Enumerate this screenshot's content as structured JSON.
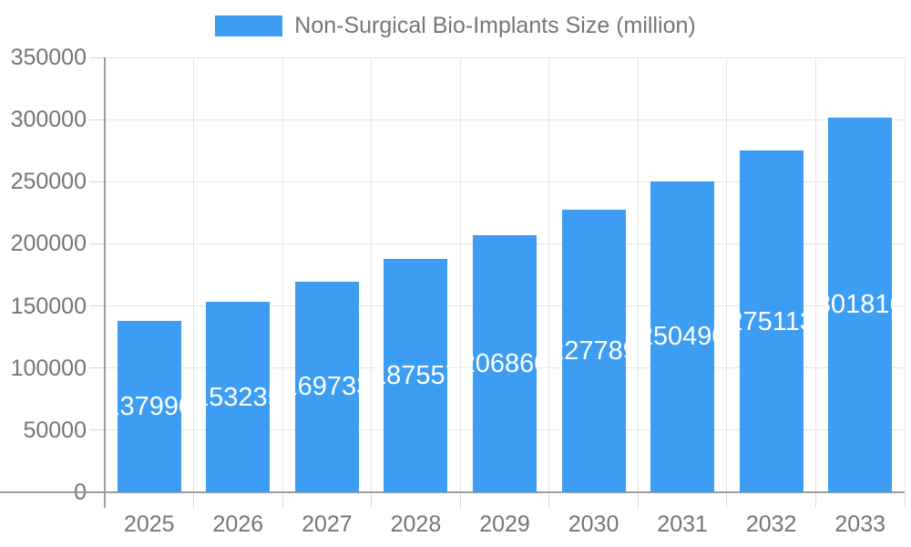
{
  "legend": {
    "label": "Non-Surgical Bio-Implants Size (million)"
  },
  "chart_data": {
    "type": "bar",
    "title": "",
    "legend": "Non-Surgical Bio-Implants Size (million)",
    "legend_position": "top",
    "categories": [
      "2025",
      "2026",
      "2027",
      "2028",
      "2029",
      "2030",
      "2031",
      "2032",
      "2033"
    ],
    "values": [
      137990,
      153235,
      169733,
      187557,
      206860,
      227789,
      250490,
      275113,
      301816
    ],
    "xlabel": "",
    "ylabel": "",
    "ylim": [
      0,
      350000
    ],
    "yticks": [
      0,
      50000,
      100000,
      150000,
      200000,
      250000,
      300000,
      350000
    ],
    "grid": true,
    "bar_color": "#3d9df3",
    "annotation_color": "#ffffff",
    "axis_text_color": "#757575",
    "gridline_color": "#e6e6e6",
    "axis_line_color": "#9e9e9e"
  }
}
